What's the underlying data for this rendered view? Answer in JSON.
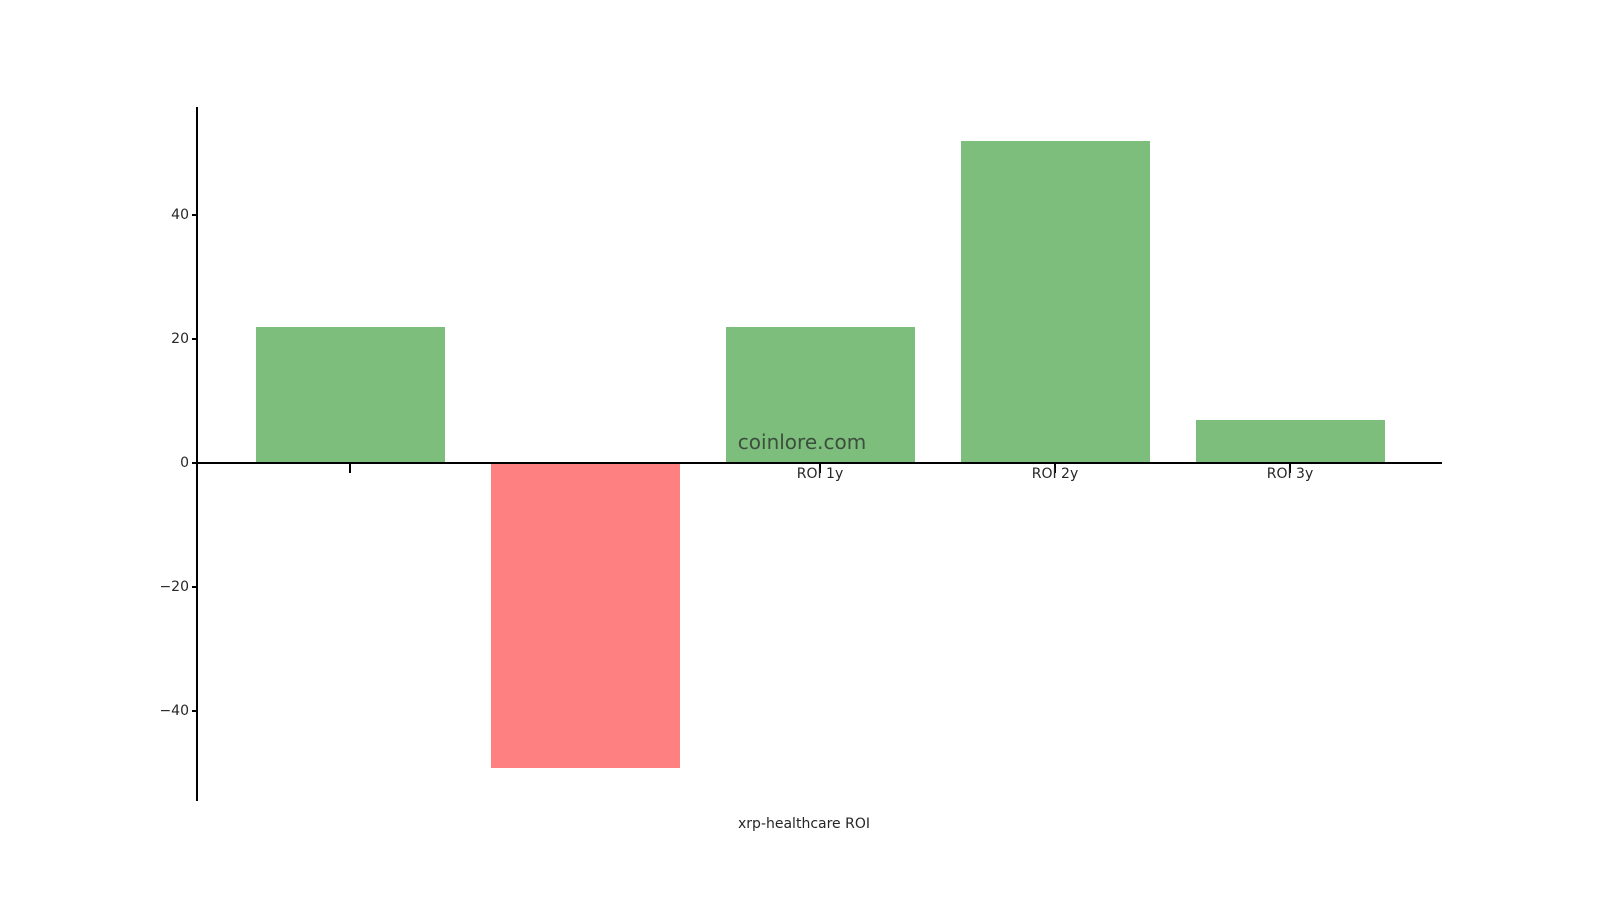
{
  "watermark": "coinlore.com",
  "chart_data": {
    "type": "bar",
    "title": "",
    "xlabel": "xrp-healthcare ROI",
    "ylabel": "",
    "categories": [
      "",
      "",
      "ROI 1y",
      "ROI 2y",
      "ROI 3y"
    ],
    "values": [
      22,
      -49,
      22,
      52,
      7
    ],
    "yticks": [
      40,
      20,
      0,
      -20,
      -40
    ],
    "ylim": [
      -54.5,
      57.5
    ],
    "grid": false,
    "legend": false,
    "colors": {
      "positive_bar": "#7dbe7d",
      "negative_bar": "#ff8080",
      "axis": "#000000",
      "tick_text": "#262626",
      "watermark_text": "#2a302a"
    }
  }
}
